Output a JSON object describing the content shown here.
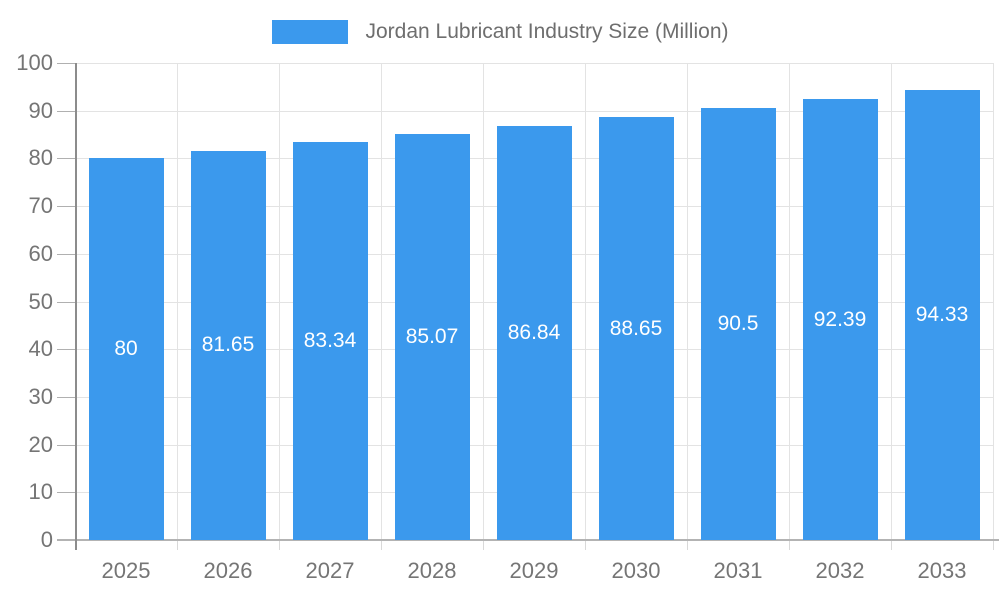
{
  "chart_data": {
    "type": "bar",
    "title": "Jordan Lubricant Industry Size (Million)",
    "legend_position": "top-center",
    "categories": [
      "2025",
      "2026",
      "2027",
      "2028",
      "2029",
      "2030",
      "2031",
      "2032",
      "2033"
    ],
    "values": [
      80,
      81.65,
      83.34,
      85.07,
      86.84,
      88.65,
      90.5,
      92.39,
      94.33
    ],
    "value_labels": [
      "80",
      "81.65",
      "83.34",
      "85.07",
      "86.84",
      "88.65",
      "90.5",
      "92.39",
      "94.33"
    ],
    "xlabel": "",
    "ylabel": "",
    "ylim": [
      0,
      100
    ],
    "y_ticks": [
      0,
      10,
      20,
      30,
      40,
      50,
      60,
      70,
      80,
      90,
      100
    ],
    "grid": true,
    "colors": {
      "bar": "#3b99ed",
      "value_label": "#ffffff",
      "axis_label": "#757575",
      "legend_label": "#6e6e6e",
      "grid_line": "#e3e3e3",
      "y_axis_line": "#8c8c8c",
      "x_axis_line": "#b3b3b3",
      "y_tick": "#b0b0b0",
      "x_tick": "#d9d9d9",
      "background": "#ffffff"
    }
  }
}
